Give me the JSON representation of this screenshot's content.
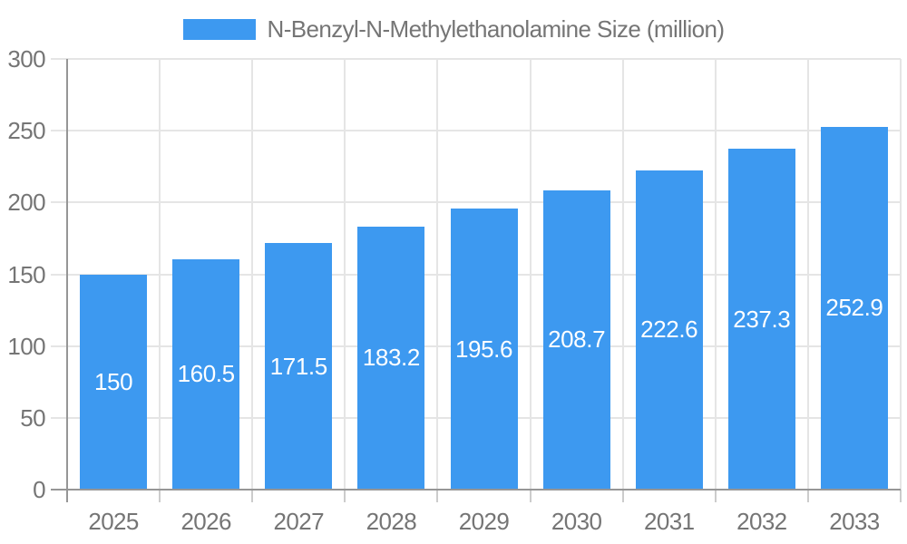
{
  "legend": {
    "label": "N-Benzyl-N-Methylethanolamine Size (million)"
  },
  "chart_data": {
    "type": "bar",
    "title": "N-Benzyl-N-Methylethanolamine Size (million)",
    "categories": [
      "2025",
      "2026",
      "2027",
      "2028",
      "2029",
      "2030",
      "2031",
      "2032",
      "2033"
    ],
    "series": [
      {
        "name": "N-Benzyl-N-Methylethanolamine Size (million)",
        "values": [
          150,
          160.5,
          171.5,
          183.2,
          195.6,
          208.7,
          222.6,
          237.3,
          252.9
        ]
      }
    ],
    "value_labels": [
      "150",
      "160.5",
      "171.5",
      "183.2",
      "195.6",
      "208.7",
      "222.6",
      "237.3",
      "252.9"
    ],
    "xlabel": "",
    "ylabel": "",
    "ylim": [
      0,
      300
    ],
    "ytick_step": 50,
    "yticks": [
      "0",
      "50",
      "100",
      "150",
      "200",
      "250",
      "300"
    ],
    "grid": true,
    "legend_position": "top-center",
    "colors": {
      "bar": "#3D99F0",
      "grid": "#E5E5E5",
      "minor_tick": "#CCCCCC",
      "axis": "#969696",
      "tick_label": "#757575",
      "legend_label": "#757575",
      "value_label": "#FFFFFF",
      "background": "#FFFFFF"
    }
  }
}
